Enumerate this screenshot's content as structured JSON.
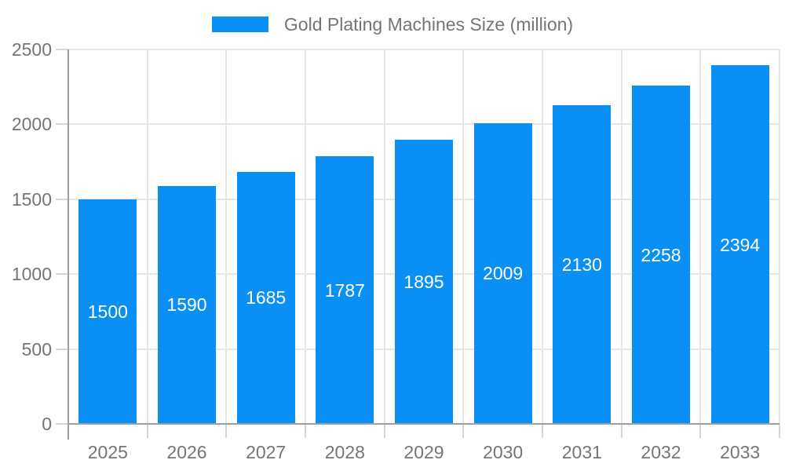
{
  "legend": {
    "series_label": "Gold Plating Machines Size (million)",
    "swatch_color": "#0a90f5"
  },
  "chart_data": {
    "type": "bar",
    "title": "Gold Plating Machines Size (million)",
    "categories": [
      "2025",
      "2026",
      "2027",
      "2028",
      "2029",
      "2030",
      "2031",
      "2032",
      "2033"
    ],
    "values": [
      1500,
      1590,
      1685,
      1787,
      1895,
      2009,
      2130,
      2258,
      2394
    ],
    "series": [
      {
        "name": "Gold Plating Machines Size (million)",
        "values": [
          1500,
          1590,
          1685,
          1787,
          1895,
          2009,
          2130,
          2258,
          2394
        ]
      }
    ],
    "xlabel": "",
    "ylabel": "",
    "ylim": [
      0,
      2500
    ],
    "yticks": [
      0,
      500,
      1000,
      1500,
      2000,
      2500
    ],
    "grid": true,
    "legend_position": "top",
    "bar_labels_visible": true,
    "bar_label_position": "center"
  },
  "colors": {
    "bar": "#0a90f5",
    "bar_label": "#ffffff",
    "axis_text": "#757575",
    "axis_line": "#9e9e9e",
    "grid_line": "#e6e6e6",
    "tick_line": "#d6d6d6",
    "background": "#ffffff"
  }
}
